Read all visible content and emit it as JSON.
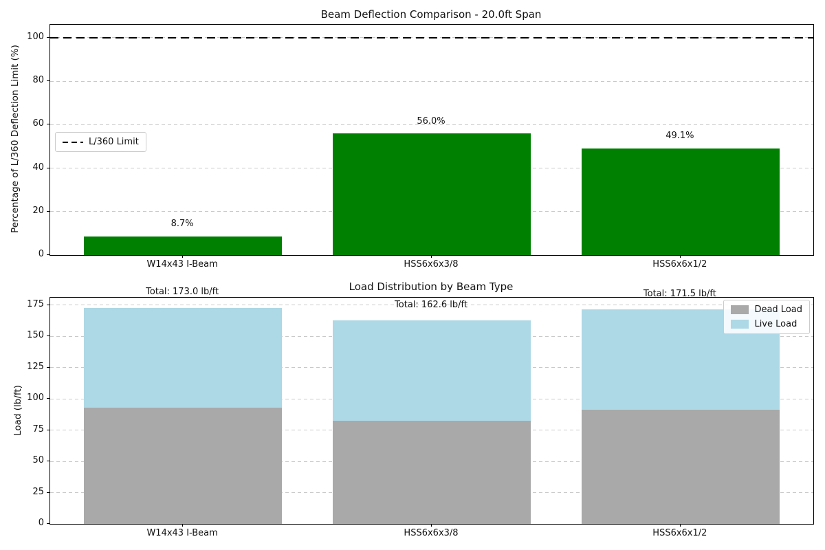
{
  "chart_data": [
    {
      "type": "bar",
      "title": "Beam Deflection Comparison - 20.0ft Span",
      "ylabel": "Percentage of L/360 Deflection Limit (%)",
      "xlabel": "",
      "categories": [
        "W14x43 I-Beam",
        "HSS6x6x3/8",
        "HSS6x6x1/2"
      ],
      "values": [
        8.7,
        56.0,
        49.1
      ],
      "value_labels": [
        "8.7%",
        "56.0%",
        "49.1%"
      ],
      "bar_color": "#008000",
      "yticks": [
        0,
        20,
        40,
        60,
        80,
        100
      ],
      "ylim": [
        0,
        106
      ],
      "grid": "horizontal-dashed",
      "limit_line": {
        "value": 100,
        "label": "L/360 Limit",
        "color": "#000000",
        "style": "dashed"
      },
      "legend_position": "center-left"
    },
    {
      "type": "stacked-bar",
      "title": "Load Distribution by Beam Type",
      "ylabel": "Load (lb/ft)",
      "xlabel": "",
      "categories": [
        "W14x43 I-Beam",
        "HSS6x6x3/8",
        "HSS6x6x1/2"
      ],
      "series": [
        {
          "name": "Dead Load",
          "color": "#a9a9a9",
          "values": [
            93.0,
            82.6,
            91.5
          ]
        },
        {
          "name": "Live Load",
          "color": "#add8e6",
          "values": [
            80.0,
            80.0,
            80.0
          ]
        }
      ],
      "totals": [
        173.0,
        162.6,
        171.5
      ],
      "total_labels": [
        "Total: 173.0 lb/ft",
        "Total: 162.6 lb/ft",
        "Total: 171.5 lb/ft"
      ],
      "yticks": [
        0,
        25,
        50,
        75,
        100,
        125,
        150,
        175
      ],
      "ylim": [
        0,
        181
      ],
      "grid": "horizontal-dashed",
      "legend_position": "upper-right"
    }
  ]
}
